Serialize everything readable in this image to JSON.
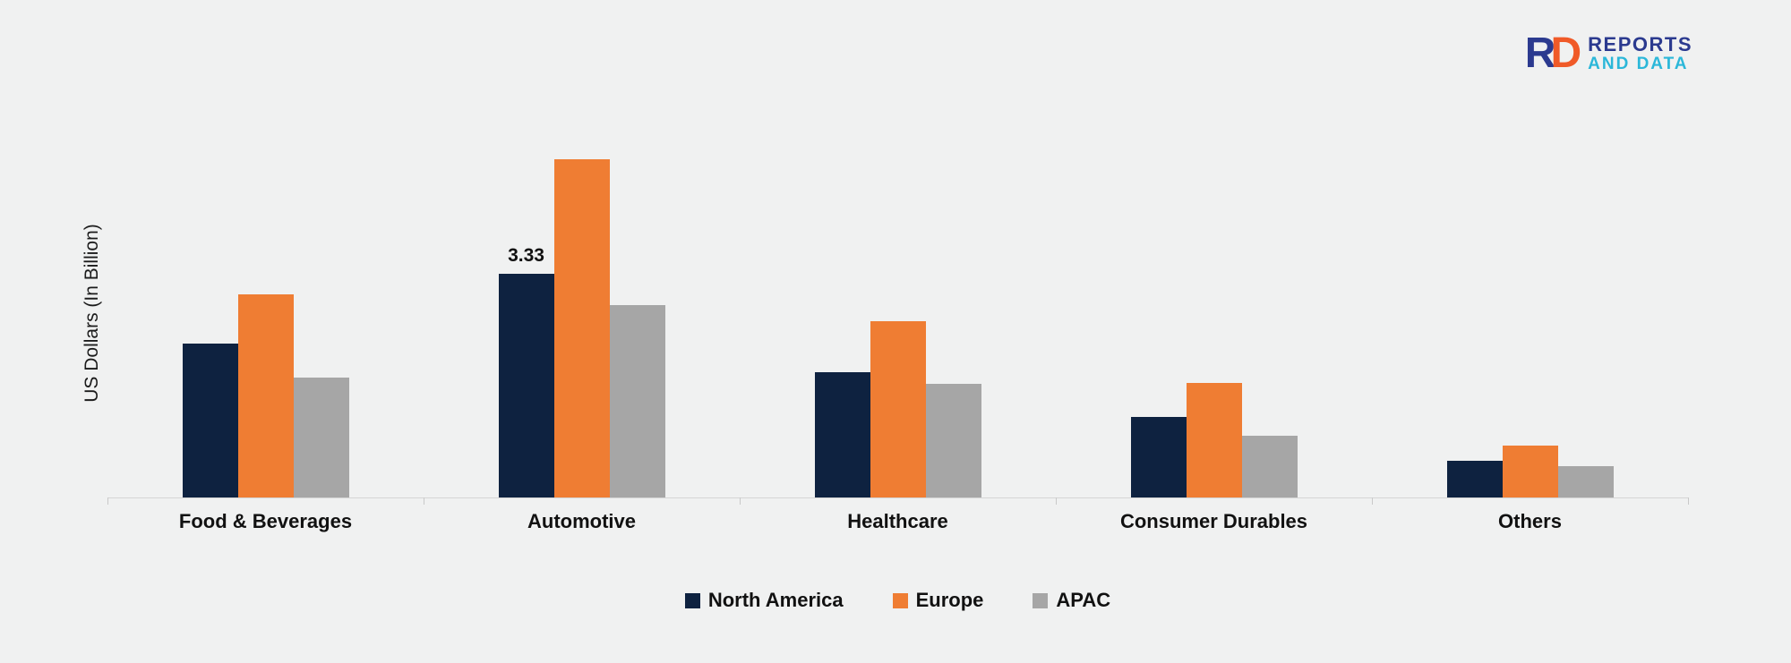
{
  "background": "#f0f1f1",
  "logo": {
    "mark_r": "R",
    "mark_d": "D",
    "line1": "REPORTS",
    "line2": "AND DATA",
    "colors": {
      "r": "#2b3a8f",
      "d": "#f05a28",
      "line1": "#2b3a8f",
      "line2": "#2bb7d9"
    }
  },
  "chart_data": {
    "type": "bar",
    "title": "",
    "xlabel": "",
    "ylabel": "US Dollars (In Billion)",
    "categories": [
      "Food & Beverages",
      "Automotive",
      "Healthcare",
      "Consumer Durables",
      "Others"
    ],
    "series": [
      {
        "name": "North America",
        "color": "#0e2240",
        "values": [
          2.29,
          3.33,
          1.86,
          1.2,
          0.55
        ]
      },
      {
        "name": "Europe",
        "color": "#ef7d33",
        "values": [
          3.02,
          5.04,
          2.63,
          1.71,
          0.77
        ]
      },
      {
        "name": "APAC",
        "color": "#a6a6a6",
        "values": [
          1.78,
          2.87,
          1.69,
          0.92,
          0.46
        ]
      }
    ],
    "data_labels": [
      {
        "series": "North America",
        "category": "Automotive",
        "text": "3.33"
      }
    ],
    "ylim": [
      0,
      5.6
    ],
    "grid": false,
    "legend_position": "bottom"
  }
}
